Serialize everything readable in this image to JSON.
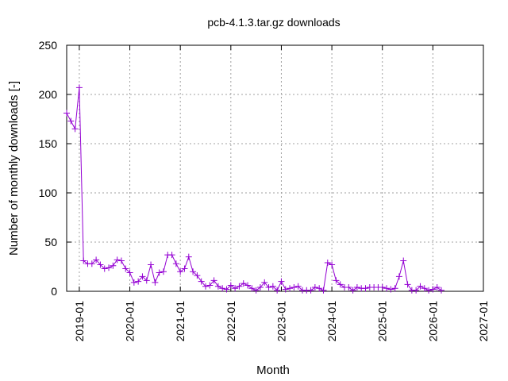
{
  "chart_data": {
    "type": "line",
    "title": "pcb-4.1.3.tar.gz downloads",
    "xlabel": "Month",
    "ylabel": "Number of monthly downloads [-]",
    "ylim": [
      0,
      250
    ],
    "yticks": [
      0,
      50,
      100,
      150,
      200,
      250
    ],
    "xticks": [
      "2019-01",
      "2020-01",
      "2021-01",
      "2022-01",
      "2023-01",
      "2024-01",
      "2025-01",
      "2026-01",
      "2027-01"
    ],
    "xlim": [
      "2018-10",
      "2027-01"
    ],
    "grid": true,
    "legend": "none",
    "line_color": "#9400d3",
    "marker": "plus",
    "series": [
      {
        "name": "downloads",
        "start_month": "2018-10",
        "values": [
          181,
          173,
          165,
          207,
          31,
          28,
          28,
          32,
          27,
          23,
          24,
          26,
          32,
          31,
          23,
          19,
          9,
          10,
          15,
          11,
          27,
          9,
          19,
          20,
          37,
          37,
          28,
          20,
          23,
          35,
          20,
          16,
          10,
          5,
          6,
          11,
          5,
          3,
          2,
          6,
          3,
          5,
          8,
          6,
          3,
          1,
          4,
          9,
          4,
          5,
          1,
          10,
          2,
          3,
          4,
          5,
          1,
          1,
          1,
          4,
          3,
          1,
          29,
          27,
          11,
          7,
          4,
          4,
          1,
          4,
          3,
          3,
          4,
          4,
          4,
          4,
          3,
          2,
          3,
          15,
          31,
          7,
          1,
          1,
          5,
          3,
          1,
          2,
          4,
          1
        ]
      }
    ]
  }
}
